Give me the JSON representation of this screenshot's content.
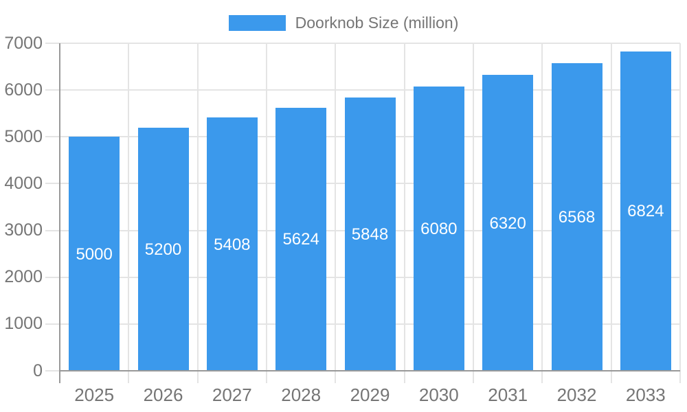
{
  "chart_data": {
    "type": "bar",
    "title": "Doorknob Size (million)",
    "legend_entries": [
      "Doorknob Size (million)"
    ],
    "legend_position": "top",
    "categories": [
      "2025",
      "2026",
      "2027",
      "2028",
      "2029",
      "2030",
      "2031",
      "2032",
      "2033"
    ],
    "values": [
      5000,
      5200,
      5408,
      5624,
      5848,
      6080,
      6320,
      6568,
      6824
    ],
    "xlabel": "",
    "ylabel": "",
    "ylim": [
      0,
      7000
    ],
    "yticks": [
      0,
      1000,
      2000,
      3000,
      4000,
      5000,
      6000,
      7000
    ],
    "ytick_labels": [
      "0",
      "1000",
      "2000",
      "3000",
      "4000",
      "5000",
      "6000",
      "7000"
    ],
    "grid": true,
    "bar_labels_inside": true,
    "bar_color": "#3b99ec",
    "bar_label_color": "#ffffff",
    "grid_color": "#e4e4e4",
    "axis_color": "#999999",
    "text_color": "#757575",
    "background_color": "#ffffff"
  }
}
